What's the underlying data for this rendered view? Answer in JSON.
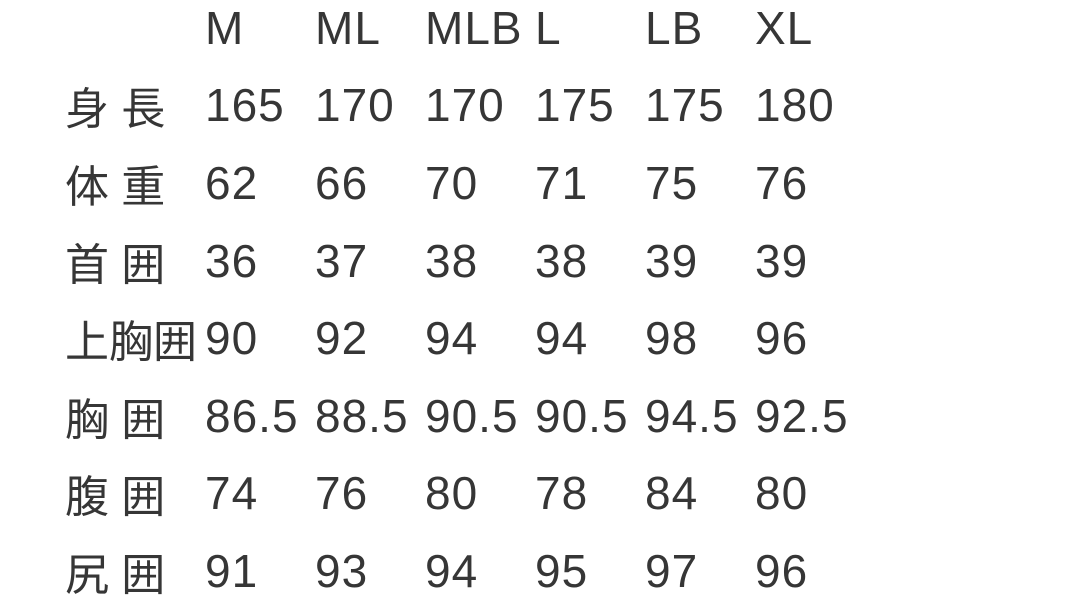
{
  "page": {
    "background_color": "#ffffff",
    "text_color": "#363636"
  },
  "table": {
    "corner_label": "",
    "columns": [
      "M",
      "ML",
      "MLB",
      "L",
      "LB",
      "XL"
    ],
    "rows": [
      {
        "label": "身 長",
        "values": [
          "165",
          "170",
          "170",
          "175",
          "175",
          "180"
        ]
      },
      {
        "label": "体 重",
        "values": [
          "62",
          "66",
          "70",
          "71",
          "75",
          "76"
        ]
      },
      {
        "label": "首 囲",
        "values": [
          "36",
          "37",
          "38",
          "38",
          "39",
          "39"
        ]
      },
      {
        "label": "上胸囲",
        "values": [
          "90",
          "92",
          "94",
          "94",
          "98",
          "96"
        ]
      },
      {
        "label": "胸 囲",
        "values": [
          "86.5",
          "88.5",
          "90.5",
          "90.5",
          "94.5",
          "92.5"
        ]
      },
      {
        "label": "腹 囲",
        "values": [
          "74",
          "76",
          "80",
          "78",
          "84",
          "80"
        ]
      },
      {
        "label": "尻 囲",
        "values": [
          "91",
          "93",
          "94",
          "95",
          "97",
          "96"
        ]
      }
    ]
  },
  "chart_data": {
    "type": "table",
    "title": "",
    "columns": [
      "",
      "M",
      "ML",
      "MLB",
      "L",
      "LB",
      "XL"
    ],
    "rows": [
      [
        "身 長",
        165,
        170,
        170,
        175,
        175,
        180
      ],
      [
        "体 重",
        62,
        66,
        70,
        71,
        75,
        76
      ],
      [
        "首 囲",
        36,
        37,
        38,
        38,
        39,
        39
      ],
      [
        "上胸囲",
        90,
        92,
        94,
        94,
        98,
        96
      ],
      [
        "胸 囲",
        86.5,
        88.5,
        90.5,
        90.5,
        94.5,
        92.5
      ],
      [
        "腹 囲",
        74,
        76,
        80,
        78,
        84,
        80
      ],
      [
        "尻 囲",
        91,
        93,
        94,
        95,
        97,
        96
      ]
    ],
    "layout_hints": {
      "grid": false,
      "borders": false,
      "header_row": true,
      "label_column": true
    }
  }
}
